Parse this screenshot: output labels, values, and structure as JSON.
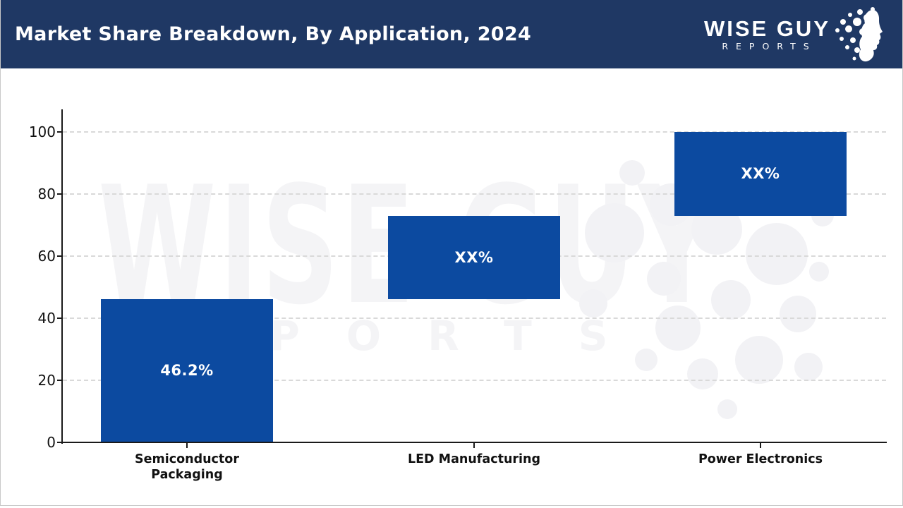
{
  "header": {
    "title": "Market Share Breakdown, By Application, 2024",
    "bg_color": "#1f3864",
    "logo": {
      "line1": "WISE GUY",
      "line2": "REPORTS"
    }
  },
  "watermark": {
    "line1": "WISE GUY",
    "line2": "REPORTS"
  },
  "chart_data": {
    "type": "bar",
    "subtype": "waterfall",
    "title": "Market Share Breakdown, By Application, 2024",
    "categories": [
      "Semiconductor Packaging",
      "LED Manufacturing",
      "Power Electronics"
    ],
    "segments": [
      {
        "category": "Semiconductor Packaging",
        "category_lines": [
          "Semiconductor",
          "Packaging"
        ],
        "start": 0,
        "end": 46.2,
        "label": "46.2%"
      },
      {
        "category": "LED Manufacturing",
        "category_lines": [
          "LED Manufacturing"
        ],
        "start": 46.2,
        "end": 73,
        "label": "XX%"
      },
      {
        "category": "Power Electronics",
        "category_lines": [
          "Power Electronics"
        ],
        "start": 73,
        "end": 100,
        "label": "XX%"
      }
    ],
    "xlabel": "",
    "ylabel": "",
    "ylim": [
      0,
      100
    ],
    "yticks": [
      0,
      20,
      40,
      60,
      80,
      100
    ],
    "grid": "horizontal-dashed",
    "legend": "none",
    "bar_color": "#0c4aa0",
    "grid_color": "#d9d9d9",
    "axis_color": "#1a1a1a"
  }
}
